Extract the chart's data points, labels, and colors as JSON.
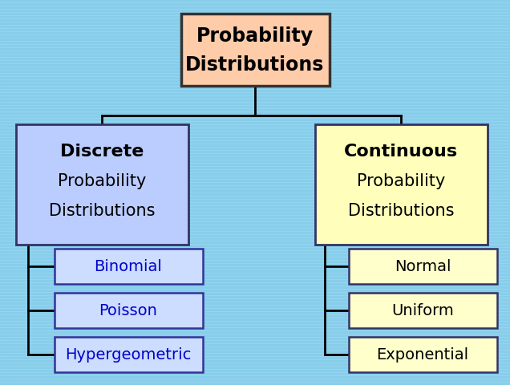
{
  "title_line1": "Probability",
  "title_line2": "Distributions",
  "title_box_color": "#FFCCAA",
  "title_box_edge": "#333333",
  "bg_color": "#87CEEB",
  "discrete_line1": "Discrete",
  "discrete_line23": "Probability\nDistributions",
  "discrete_box_color": "#BBCCFF",
  "discrete_box_edge": "#333366",
  "continuous_line1": "Continuous",
  "continuous_line23": "Probability\nDistributions",
  "continuous_box_color": "#FFFFBB",
  "continuous_box_edge": "#333366",
  "discrete_children": [
    "Binomial",
    "Poisson",
    "Hypergeometric"
  ],
  "discrete_child_color": "#CCDDFF",
  "discrete_child_edge": "#333399",
  "discrete_child_text_color": "#0000CC",
  "continuous_children": [
    "Normal",
    "Uniform",
    "Exponential"
  ],
  "continuous_child_color": "#FFFFCC",
  "continuous_child_edge": "#333366",
  "continuous_child_text_color": "#000000",
  "line_color": "#000000",
  "line_width": 2.0,
  "stripe_color": "#FFFFFF",
  "stripe_alpha": 0.18
}
